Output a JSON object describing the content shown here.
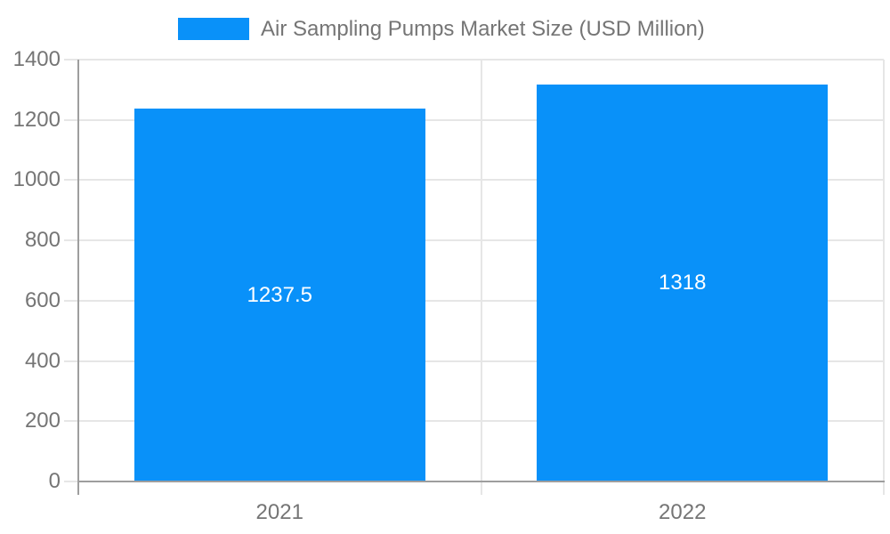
{
  "legend": {
    "label": "Air Sampling Pumps Market Size (USD Million)"
  },
  "chart_data": {
    "type": "bar",
    "title": "Air Sampling Pumps Market Size (USD Million)",
    "categories": [
      "2021",
      "2022"
    ],
    "values": [
      1237.5,
      1318
    ],
    "bar_labels": [
      "1237.5",
      "1318"
    ],
    "xlabel": "",
    "ylabel": "",
    "ylim": [
      0,
      1400
    ],
    "yticks": [
      0,
      200,
      400,
      600,
      800,
      1000,
      1200,
      1400
    ],
    "grid": true,
    "legend_position": "top",
    "colors": {
      "bar": "#0991f9",
      "text": "#757575",
      "gridline": "#e6e6e6",
      "axis": "#9e9e9e",
      "value_label": "#ffffff"
    }
  }
}
